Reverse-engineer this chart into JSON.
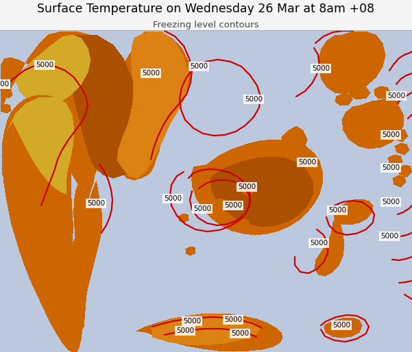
{
  "title": "Surface Temperature on Wednesday 26 Mar at 8am +08",
  "subtitle": "Freezing level contours",
  "title_fontsize": 12.5,
  "subtitle_fontsize": 9.5,
  "title_color": "#000000",
  "subtitle_color": "#444444",
  "header_bg": "#f5f5f5",
  "fig_width": 6.01,
  "fig_height": 5.14,
  "dpi": 100,
  "border_color": "#888888",
  "contour_color": "#cc0000",
  "sea_color": "#bcc8de",
  "land_base": "#cc6600",
  "land_mid": "#d97000",
  "land_dark": "#b85000",
  "land_yellow": "#ddb830",
  "header_line_color": "#aaaaaa",
  "label_5000_color": "#000000",
  "label_bg": "#ffffff"
}
